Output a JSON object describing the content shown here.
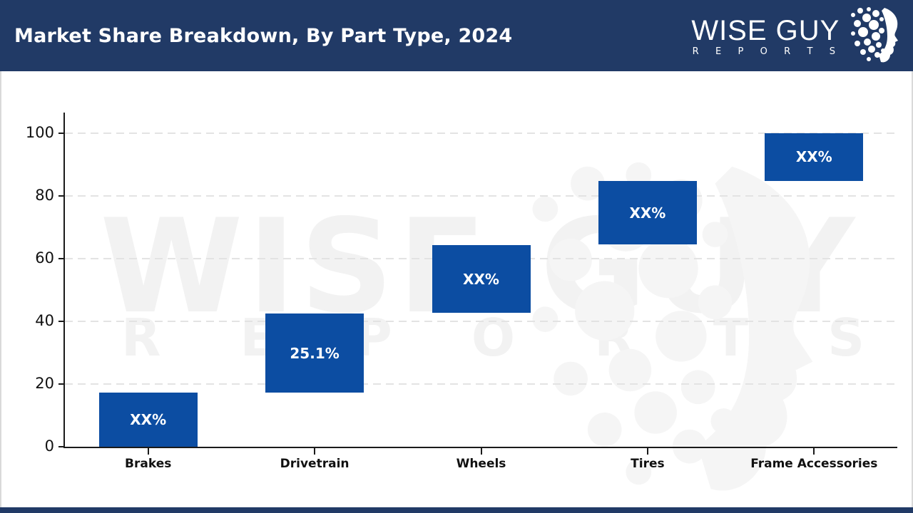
{
  "header": {
    "title": "Market Share Breakdown, By Part Type, 2024",
    "bg_color": "#213a66",
    "logo": {
      "line1": "WISE GUY",
      "line2": "REPORTS"
    }
  },
  "watermark": {
    "line1": "WISE GUY",
    "line2": "REPORTS"
  },
  "chart_data": {
    "type": "bar",
    "subtype": "floating-range-waterfall",
    "title": "Market Share Breakdown, By Part Type, 2024",
    "categories": [
      "Brakes",
      "Drivetrain",
      "Wheels",
      "Tires",
      "Frame Accessories"
    ],
    "series": [
      {
        "name": "Market Share (%)",
        "ranges": [
          [
            0,
            17.3
          ],
          [
            17.3,
            42.4
          ],
          [
            42.7,
            64.3
          ],
          [
            64.5,
            84.8
          ],
          [
            84.8,
            100
          ]
        ],
        "bar_labels": [
          "XX%",
          "25.1%",
          "XX%",
          "XX%",
          "XX%"
        ]
      }
    ],
    "bar_color": "#0c4da2",
    "bar_label_color": "#ffffff",
    "xlabel": "",
    "ylabel": "",
    "ylim": [
      0,
      106
    ],
    "yticks": [
      0,
      20,
      40,
      60,
      80,
      100
    ],
    "grid": "horizontal-dashed",
    "legend": "none"
  }
}
